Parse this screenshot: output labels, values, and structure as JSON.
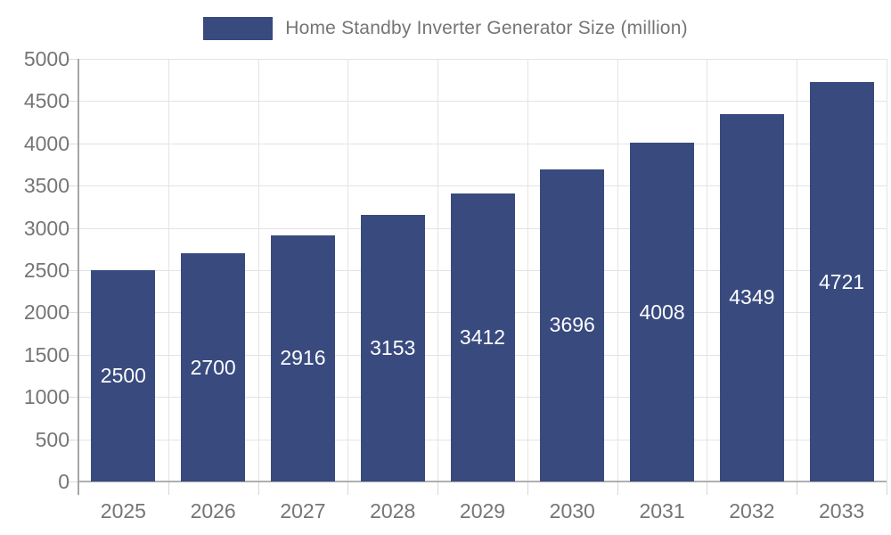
{
  "legend": {
    "label": "Home Standby Inverter Generator Size (million)"
  },
  "colors": {
    "bar": "#394a7f",
    "bar_label": "#ffffff",
    "axis_text": "#757575",
    "grid": "#e4e4e4",
    "y_axis_line": "#a6a6a6",
    "x_axis_line": "#b0b0b0"
  },
  "chart_data": {
    "type": "bar",
    "title": "Home Standby Inverter Generator Size (million)",
    "categories": [
      "2025",
      "2026",
      "2027",
      "2028",
      "2029",
      "2030",
      "2031",
      "2032",
      "2033"
    ],
    "values": [
      2500,
      2700,
      2916,
      3153,
      3412,
      3696,
      4008,
      4349,
      4721
    ],
    "xlabel": "",
    "ylabel": "",
    "ylim": [
      0,
      5000
    ],
    "ytick_step": 500,
    "grid": true,
    "legend_position": "top",
    "bar_labels_inside": true
  }
}
